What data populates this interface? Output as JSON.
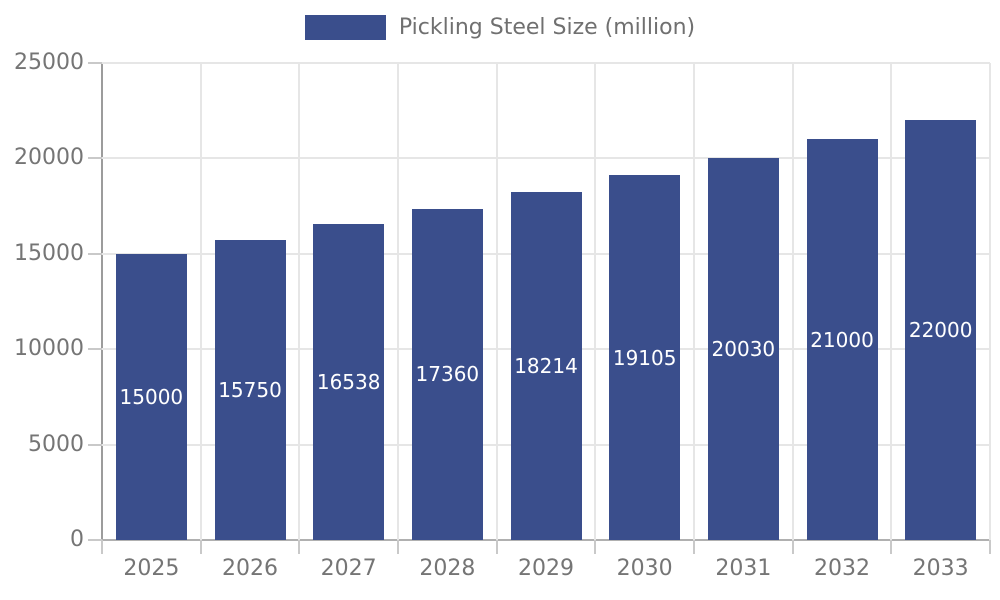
{
  "chart_data": {
    "type": "bar",
    "title": "",
    "legend_label": "Pickling Steel Size (million)",
    "legend_position": "top-center",
    "categories": [
      "2025",
      "2026",
      "2027",
      "2028",
      "2029",
      "2030",
      "2031",
      "2032",
      "2033"
    ],
    "values": [
      15000,
      15750,
      16538,
      17360,
      18214,
      19105,
      20030,
      21000,
      22000
    ],
    "value_labels": [
      "15000",
      "15750",
      "16538",
      "17360",
      "18214",
      "19105",
      "20030",
      "21000",
      "22000"
    ],
    "xlabel": "",
    "ylabel": "",
    "ylim": [
      0,
      25000
    ],
    "yticks": [
      0,
      5000,
      10000,
      15000,
      20000,
      25000
    ],
    "grid": "both",
    "bar_color": "#3A4E8C",
    "bar_label_color": "#FFFFFF",
    "axis_text_color": "#757575",
    "legend_text_color": "#707070"
  }
}
